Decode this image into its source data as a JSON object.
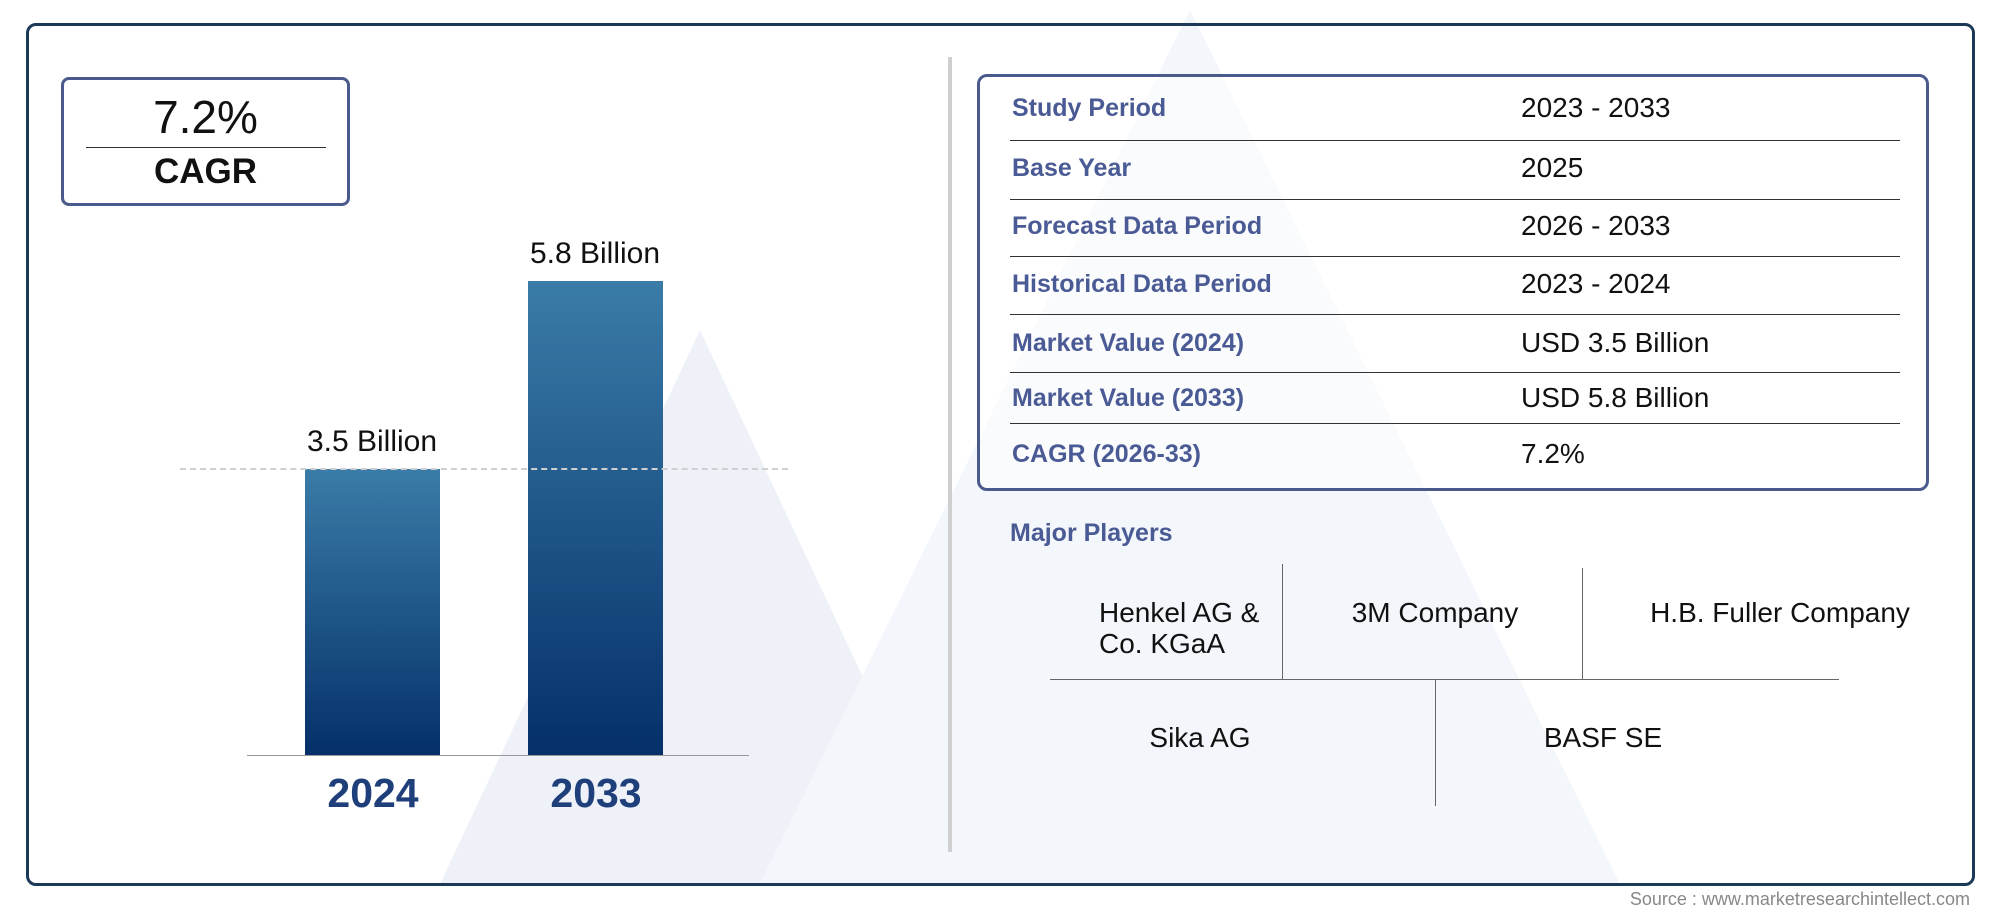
{
  "cagr_card": {
    "value": "7.2%",
    "label": "CAGR"
  },
  "chart_data": {
    "type": "bar",
    "categories": [
      "2024",
      "2033"
    ],
    "values": [
      3.5,
      5.8
    ],
    "data_labels": [
      "3.5 Billion",
      "5.8 Billion"
    ],
    "unit": "Billion",
    "colors": {
      "bar_top": "#3a7ca8",
      "bar_bottom": "#05306a",
      "year_label": "#1f3f7a"
    }
  },
  "summary_table": [
    {
      "label": "Study Period",
      "value": "2023 - 2033"
    },
    {
      "label": "Base Year",
      "value": "2025"
    },
    {
      "label": "Forecast Data Period",
      "value": "2026 - 2033"
    },
    {
      "label": "Historical Data Period",
      "value": "2023 - 2024"
    },
    {
      "label": "Market Value (2024)",
      "value": "USD 3.5 Billion"
    },
    {
      "label": "Market Value (2033)",
      "value": "USD 5.8 Billion"
    },
    {
      "label": "CAGR (2026-33)",
      "value": "7.2%"
    }
  ],
  "major_players": {
    "title": "Major Players",
    "players": [
      "Henkel AG & Co. KGaA",
      "3M Company",
      "H.B. Fuller Company",
      "Sika AG",
      "BASF SE"
    ]
  },
  "source": "Source : www.marketresearchintellect.com"
}
